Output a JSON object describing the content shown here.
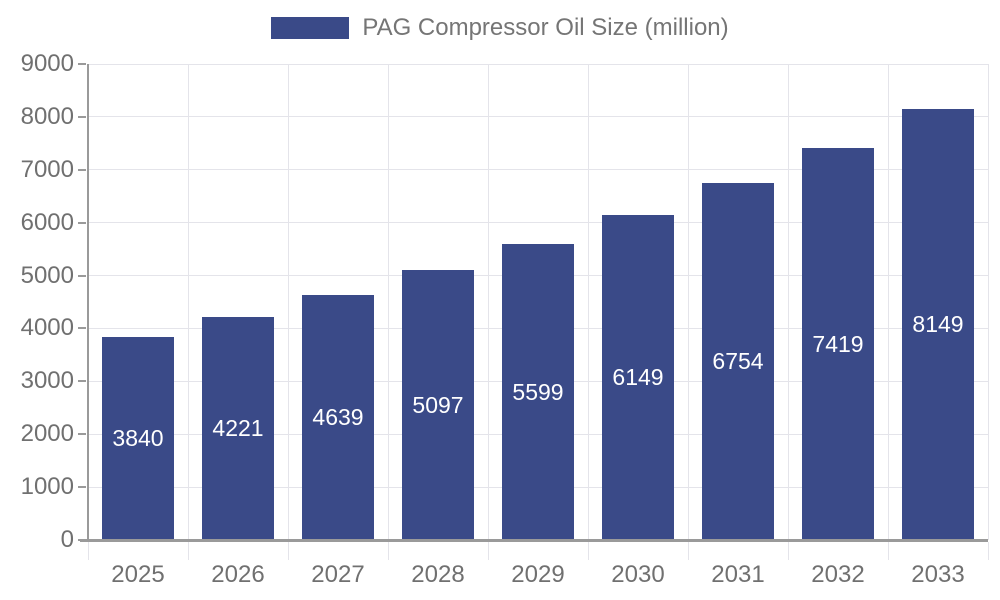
{
  "chart_data": {
    "type": "bar",
    "title": "",
    "legend": {
      "label": "PAG Compressor Oil Size (million)",
      "position": "top-center"
    },
    "categories": [
      "2025",
      "2026",
      "2027",
      "2028",
      "2029",
      "2030",
      "2031",
      "2032",
      "2033"
    ],
    "series": [
      {
        "name": "PAG Compressor Oil Size (million)",
        "values": [
          3840,
          4221,
          4639,
          5097,
          5599,
          6149,
          6754,
          7419,
          8149
        ]
      }
    ],
    "value_labels_shown": true,
    "xlabel": "",
    "ylabel": "",
    "ylim": [
      0,
      9000
    ],
    "yticks": [
      0,
      1000,
      2000,
      3000,
      4000,
      5000,
      6000,
      7000,
      8000,
      9000
    ],
    "grid": true,
    "colors": {
      "bar": "#3a4a88",
      "value_label": "#ffffff",
      "grid_line": "#e4e4ea",
      "axis_line": "#9a9a9a",
      "tick_text": "#707070",
      "legend_text": "#757575",
      "background": "#ffffff"
    }
  }
}
